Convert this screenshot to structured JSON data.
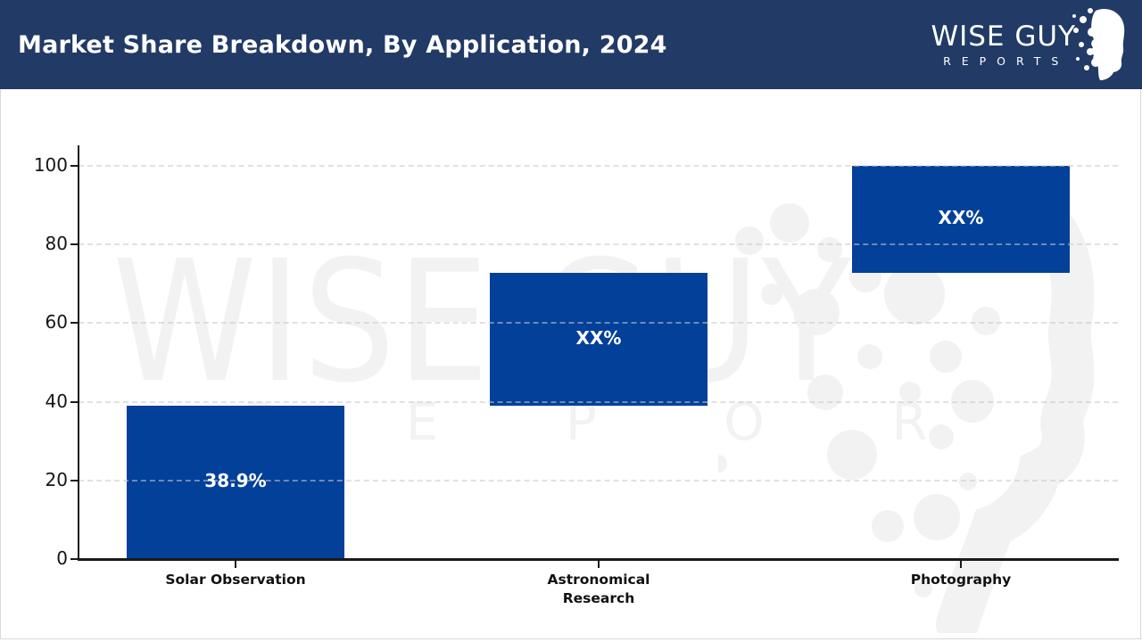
{
  "header": {
    "title": "Market Share Breakdown, By Application, 2024",
    "logo": {
      "line1": "WISE GUY",
      "line2": "REPORTS"
    },
    "background_color": "#213a66"
  },
  "watermark": {
    "line1": "WISE GUY",
    "line2": "R E P O R T S",
    "color": "#f2f2f2"
  },
  "chart_data": {
    "type": "bar",
    "subtype": "waterfall",
    "title": "Market Share Breakdown, By Application, 2024",
    "categories": [
      "Solar Observation",
      "Astronomical\nResearch",
      "Photography"
    ],
    "segments": [
      {
        "label": "Solar Observation",
        "start": 0,
        "end": 38.9,
        "value_label": "38.9%"
      },
      {
        "label": "Astronomical\nResearch",
        "start": 38.9,
        "end": 72.7,
        "value_label": "XX%"
      },
      {
        "label": "Photography",
        "start": 72.7,
        "end": 100,
        "value_label": "XX%"
      }
    ],
    "yticks": [
      0,
      20,
      40,
      60,
      80,
      100
    ],
    "ylim": [
      0,
      100
    ],
    "bar_color": "#03409a",
    "grid": true,
    "gridline_style": "dashed",
    "gridline_color": "#e0e0e0",
    "legend": "none"
  }
}
